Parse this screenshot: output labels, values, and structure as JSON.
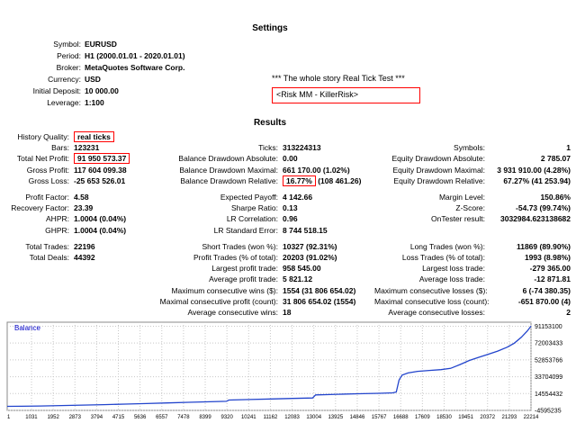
{
  "settings": {
    "title": "Settings",
    "fields": [
      {
        "label": "Symbol:",
        "value": "EURUSD"
      },
      {
        "label": "Period:",
        "value": "H1 (2000.01.01 - 2020.01.01)"
      },
      {
        "label": "Broker:",
        "value": "MetaQuotes Software Corp."
      },
      {
        "label": "Currency:",
        "value": "USD"
      },
      {
        "label": "Initial Deposit:",
        "value": "10 000.00"
      },
      {
        "label": "Leverage:",
        "value": "1:100"
      }
    ],
    "annotation": {
      "line1": "*** The whole story Real Tick Test ***",
      "line2": "<Risk MM - KillerRisk>"
    }
  },
  "results": {
    "title": "Results",
    "rows": [
      {
        "cells": [
          "History Quality:",
          {
            "t": "real ticks",
            "box": true
          },
          "",
          "",
          "",
          ""
        ]
      },
      {
        "cells": [
          "Bars:",
          "123231",
          "Ticks:",
          "313224313",
          "Symbols:",
          "1"
        ]
      },
      {
        "cells": [
          "Total Net Profit:",
          {
            "t": "91 950 573.37",
            "box": true
          },
          "Balance Drawdown Absolute:",
          "0.00",
          "Equity Drawdown Absolute:",
          "2 785.07"
        ]
      },
      {
        "cells": [
          "Gross Profit:",
          "117 604 099.38",
          "Balance Drawdown Maximal:",
          "661 170.00 (1.02%)",
          "Equity Drawdown Maximal:",
          "3 931 910.00 (4.28%)"
        ]
      },
      {
        "cells": [
          "Gross Loss:",
          "-25 653 526.01",
          "Balance Drawdown Relative:",
          {
            "t": "16.77%",
            "box": true,
            "suffix": " (108 461.26)"
          },
          "Equity Drawdown Relative:",
          "67.27% (41 253.94)"
        ]
      },
      {
        "gap": true
      },
      {
        "cells": [
          "Profit Factor:",
          "4.58",
          "Expected Payoff:",
          "4 142.66",
          "Margin Level:",
          "150.86%"
        ]
      },
      {
        "cells": [
          "Recovery Factor:",
          "23.39",
          "Sharpe Ratio:",
          "0.13",
          "Z-Score:",
          "-54.73 (99.74%)"
        ]
      },
      {
        "cells": [
          "AHPR:",
          "1.0004 (0.04%)",
          "LR Correlation:",
          "0.96",
          "OnTester result:",
          "3032984.623138682"
        ]
      },
      {
        "cells": [
          "GHPR:",
          "1.0004 (0.04%)",
          "LR Standard Error:",
          "8 744 518.15",
          "",
          ""
        ]
      },
      {
        "gap": true
      },
      {
        "cells": [
          "Total Trades:",
          "22196",
          "Short Trades (won %):",
          "10327 (92.31%)",
          "Long Trades (won %):",
          "11869 (89.90%)"
        ]
      },
      {
        "cells": [
          "Total Deals:",
          "44392",
          "Profit Trades (% of total):",
          "20203 (91.02%)",
          "Loss Trades (% of total):",
          "1993 (8.98%)"
        ]
      },
      {
        "cells": [
          "",
          "",
          "Largest profit trade:",
          "958 545.00",
          "Largest loss trade:",
          "-279 365.00"
        ]
      },
      {
        "cells": [
          "",
          "",
          "Average profit trade:",
          "5 821.12",
          "Average loss trade:",
          "-12 871.81"
        ]
      },
      {
        "cells": [
          "",
          "",
          "Maximum consecutive wins ($):",
          "1554 (31 806 654.02)",
          "Maximum consecutive losses ($):",
          "6 (-74 380.35)"
        ]
      },
      {
        "cells": [
          "",
          "",
          "Maximal consecutive profit (count):",
          "31 806 654.02 (1554)",
          "Maximal consecutive loss (count):",
          "-651 870.00 (4)"
        ]
      },
      {
        "cells": [
          "",
          "",
          "Average consecutive wins:",
          "18",
          "Average consecutive losses:",
          "2"
        ]
      }
    ]
  },
  "chart_data": {
    "type": "line",
    "title": "Balance",
    "x_range": [
      1,
      22214
    ],
    "y_min": -4595235,
    "y_plot_max": 95700000,
    "y_ticks": [
      91153100,
      72003433,
      52853766,
      33704099,
      14554432,
      -4595235
    ],
    "x_ticks": [
      1,
      1031,
      1952,
      2873,
      3794,
      4715,
      5636,
      6557,
      7478,
      8399,
      9320,
      10241,
      11162,
      12083,
      13004,
      13925,
      14846,
      15767,
      16688,
      17609,
      18530,
      19451,
      20372,
      21293,
      22214
    ],
    "grid_color": "#c8c8c8",
    "series": [
      {
        "name": "Balance",
        "color": "#2244cc",
        "points": [
          [
            1,
            10000
          ],
          [
            600,
            150000
          ],
          [
            1400,
            450000
          ],
          [
            2300,
            900000
          ],
          [
            3200,
            1400000
          ],
          [
            4100,
            1950000
          ],
          [
            5000,
            2550000
          ],
          [
            5900,
            3200000
          ],
          [
            6800,
            3900000
          ],
          [
            7700,
            4600000
          ],
          [
            8600,
            5200000
          ],
          [
            9300,
            5700000
          ],
          [
            9400,
            7200000
          ],
          [
            10300,
            7800000
          ],
          [
            11200,
            8400000
          ],
          [
            12100,
            9000000
          ],
          [
            12950,
            9500000
          ],
          [
            13080,
            13000000
          ],
          [
            14000,
            13700000
          ],
          [
            14900,
            14300000
          ],
          [
            15800,
            14900000
          ],
          [
            16350,
            15400000
          ],
          [
            16500,
            16300000
          ],
          [
            16620,
            30000000
          ],
          [
            16750,
            35500000
          ],
          [
            17000,
            38000000
          ],
          [
            17400,
            39800000
          ],
          [
            17900,
            40800000
          ],
          [
            18400,
            41800000
          ],
          [
            18800,
            43200000
          ],
          [
            19200,
            47500000
          ],
          [
            19600,
            52200000
          ],
          [
            20000,
            55800000
          ],
          [
            20400,
            59300000
          ],
          [
            20800,
            62800000
          ],
          [
            21200,
            67200000
          ],
          [
            21500,
            71800000
          ],
          [
            21800,
            78500000
          ],
          [
            22050,
            85500000
          ],
          [
            22214,
            91153100
          ]
        ]
      }
    ]
  },
  "colors": {
    "box_red": "#ff0000",
    "chart_line": "#2244cc",
    "chart_title_blue": "#0000c8"
  }
}
